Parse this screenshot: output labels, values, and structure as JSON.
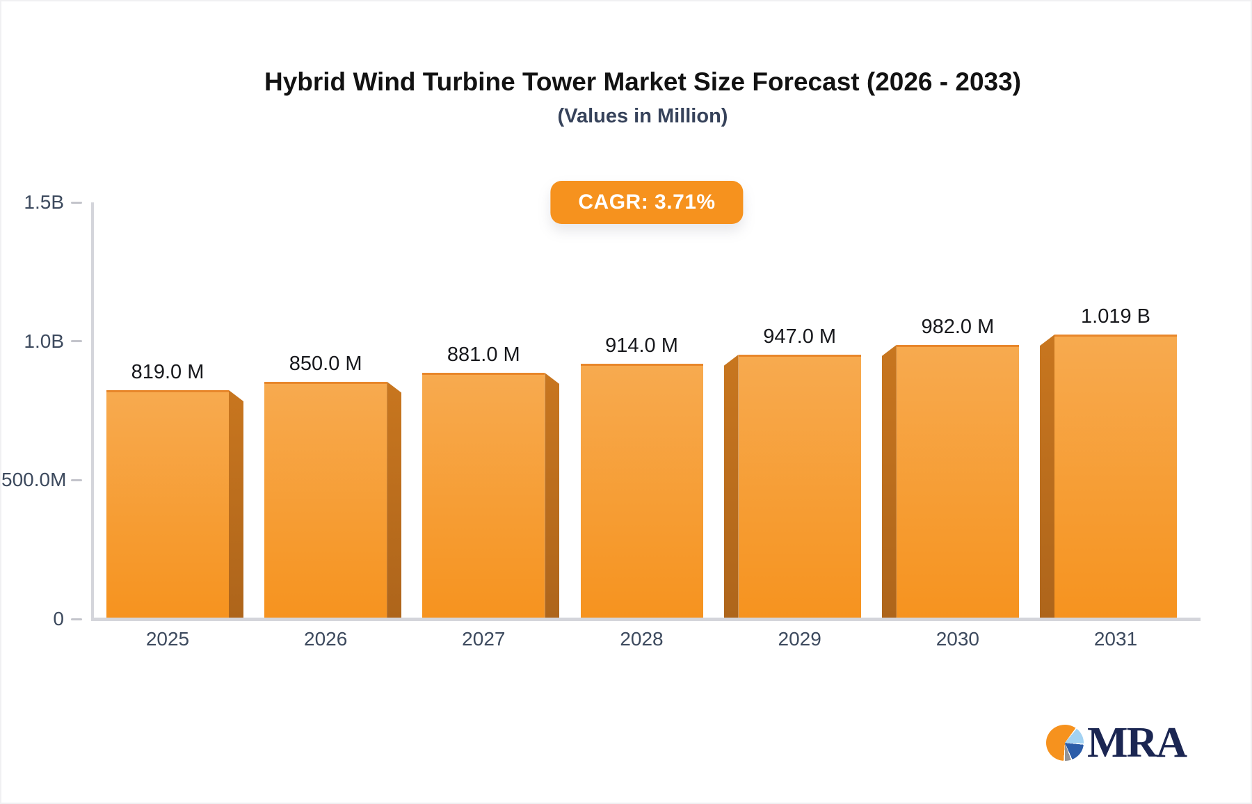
{
  "title": "Hybrid Wind Turbine Tower Market Size Forecast (2026 - 2033)",
  "subtitle": "(Values in Million)",
  "cagr_badge": "CAGR: 3.71%",
  "logo": {
    "text": "MRA",
    "icon": "pie-chart-icon"
  },
  "colors": {
    "accent_orange": "#F6921E",
    "bar_face_top": "#F7AA4F",
    "bar_face_bottom": "#F6931F",
    "bar_edge_top": "#E8872B",
    "bar_side": "#BC6C1C",
    "axis_line": "#D4D5DB",
    "tick": "#C3C4CB",
    "axis_label": "#3D4A5E",
    "value_label": "#17181C",
    "title": "#121212",
    "badge_bg": "#F6921E",
    "badge_text": "#FFFFFF",
    "logo_navy": "#1B2652",
    "logo_lightblue": "#A3D2F2",
    "logo_blue": "#2B5CA8",
    "logo_gray": "#949497"
  },
  "chart_data": {
    "type": "bar",
    "title": "Hybrid Wind Turbine Tower Market Size Forecast (2026 - 2033)",
    "subtitle": "(Values in Million)",
    "cagr_percent": "3.71%",
    "categories": [
      "2025",
      "2026",
      "2027",
      "2028",
      "2029",
      "2030",
      "2031"
    ],
    "values": [
      819,
      850,
      881,
      914,
      947,
      982,
      1019
    ],
    "value_labels": [
      "819.0 M",
      "850.0 M",
      "881.0 M",
      "914.0 M",
      "947.0 M",
      "982.0 M",
      "1.019 B"
    ],
    "xlabel": "",
    "ylabel": "",
    "ylim": [
      0,
      1500
    ],
    "yticks": [
      {
        "value": 0,
        "label": "0"
      },
      {
        "value": 500,
        "label": "500.0M"
      },
      {
        "value": 1000,
        "label": "1.0B"
      },
      {
        "value": 1500,
        "label": "1.5B"
      }
    ],
    "grid": false,
    "legend": null,
    "bar_style": "3d-orange-gradient"
  }
}
